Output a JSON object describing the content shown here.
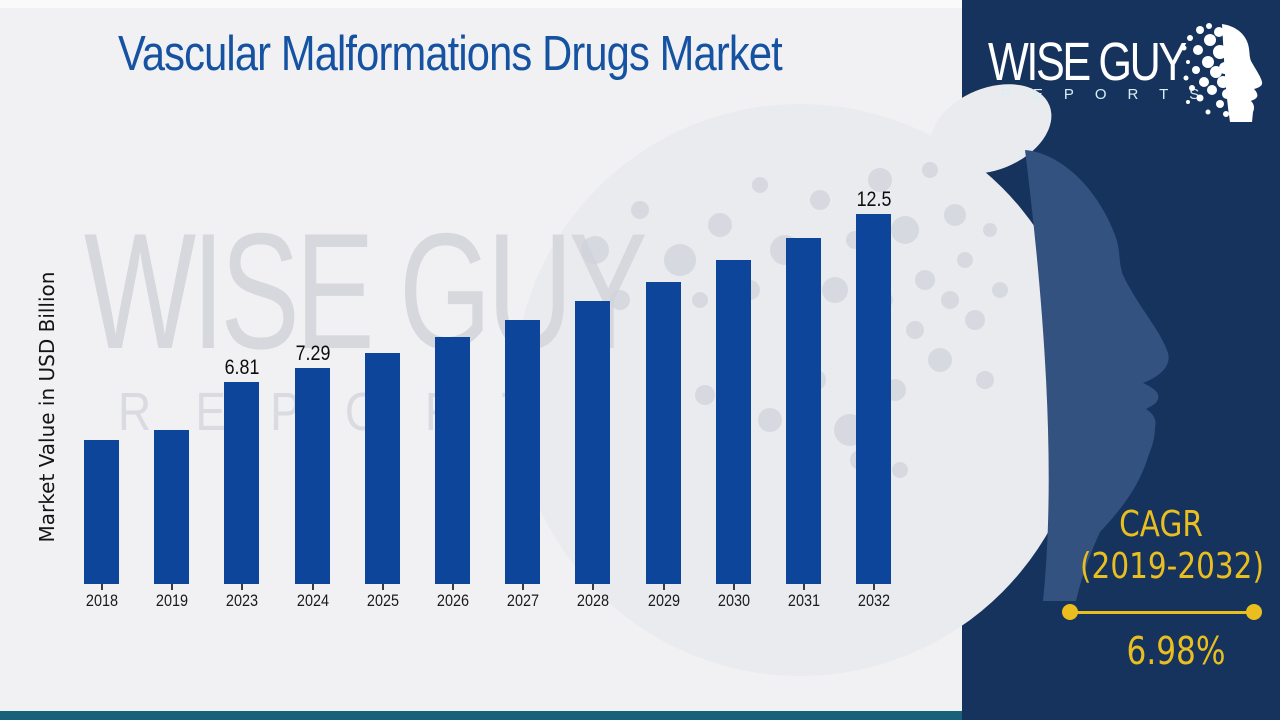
{
  "title": "Vascular Malformations Drugs Market",
  "watermark": {
    "line1": "WISE GUY",
    "line2": "REPORTS"
  },
  "logo": {
    "line1": "WISE GUY",
    "line2": "REPORTS",
    "face_icon": "face-profile-dots-icon"
  },
  "cagr": {
    "label": "CAGR",
    "range": "(2019-2032)",
    "value": "6.98%"
  },
  "colors": {
    "background": "#f1f1f3",
    "panel_navy": "#16335d",
    "bar_blue": "#0c459a",
    "title_blue": "#1652a2",
    "gold": "#e9be1e",
    "teal_strip": "#19607a",
    "watermark_gray": "#d6d8dd",
    "circle_gray": "#eaebee",
    "face_silhouette_blue": "#33527f"
  },
  "chart_data": {
    "type": "bar",
    "title": "Vascular Malformations Drugs Market",
    "xlabel": "",
    "ylabel": "Market Value in USD Billion",
    "categories": [
      "2018",
      "2019",
      "2023",
      "2024",
      "2025",
      "2026",
      "2027",
      "2028",
      "2029",
      "2030",
      "2031",
      "2032"
    ],
    "values": [
      4.86,
      5.2,
      6.81,
      7.29,
      7.8,
      8.34,
      8.92,
      9.55,
      10.21,
      10.93,
      11.69,
      12.5
    ],
    "value_labels": {
      "2023": "6.81",
      "2024": "7.29",
      "2032": "12.5"
    },
    "ylim": [
      0,
      13.5
    ],
    "grid": false,
    "legend": null,
    "bar_color": "#0c459a"
  }
}
